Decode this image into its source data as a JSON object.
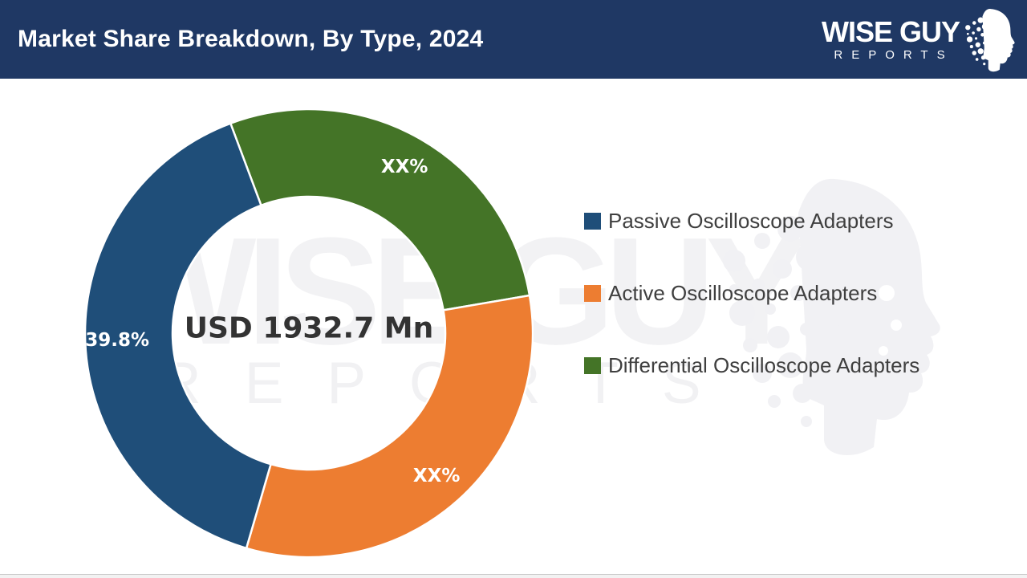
{
  "header": {
    "title": "Market Share Breakdown, By Type, 2024",
    "bg_color": "#1f3864",
    "logo": {
      "line1": "WISE GUY",
      "line2": "REPORTS"
    }
  },
  "chart_data": {
    "type": "pie",
    "donut": true,
    "title": "Market Share Breakdown, By Type, 2024",
    "center_label": "USD 1932.7 Mn",
    "start_angle_deg": -20.5,
    "draw_order": [
      2,
      1,
      0
    ],
    "legend_position": "right",
    "series": [
      {
        "name": "Passive Oscilloscope Adapters",
        "value_pct": 39.8,
        "slice_label": "39.8%",
        "color": "#1f4e79"
      },
      {
        "name": "Active Oscilloscope Adapters",
        "value_pct": 32.2,
        "slice_label": "XX%",
        "color": "#ed7d31"
      },
      {
        "name": "Differential Oscilloscope Adapters",
        "value_pct": 28.0,
        "slice_label": "XX%",
        "color": "#447427"
      }
    ]
  },
  "watermark": {
    "line1": "WISE GUY",
    "line2": "REPORTS"
  }
}
